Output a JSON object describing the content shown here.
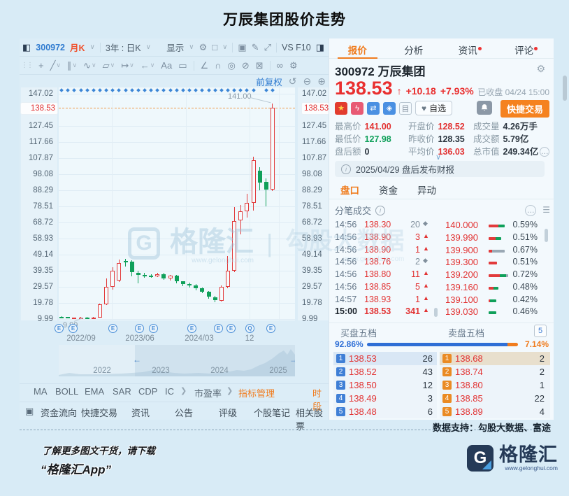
{
  "page_title": "万辰集团股价走势",
  "chart_toolbar": {
    "symbol": "300972",
    "period": "月K",
    "range": "3年 : 日K",
    "display_label": "显示",
    "vs_label": "VS F10",
    "adjust_label": "前复权"
  },
  "drawing_tools": [
    {
      "name": "move-tool-icon",
      "glyph": "+"
    },
    {
      "name": "trendline-tool-icon",
      "glyph": "╱",
      "chev": true
    },
    {
      "name": "channel-tool-icon",
      "glyph": "∥",
      "chev": true
    },
    {
      "name": "wave-tool-icon",
      "glyph": "∿",
      "chev": true
    },
    {
      "name": "pattern-tool-icon",
      "glyph": "▱",
      "chev": true
    },
    {
      "name": "measure-tool-icon",
      "glyph": "↦",
      "chev": true
    },
    {
      "name": "arrow-tool-icon",
      "glyph": "←",
      "chev": true
    },
    {
      "name": "text-tool-icon",
      "glyph": "Aa"
    },
    {
      "name": "comment-tool-icon",
      "glyph": "▭"
    },
    {
      "sep": true
    },
    {
      "name": "angle-tool-icon",
      "glyph": "∠"
    },
    {
      "name": "magnet-tool-icon",
      "glyph": "∩"
    },
    {
      "name": "visibility-tool-icon",
      "glyph": "◎"
    },
    {
      "name": "lock-tool-icon",
      "glyph": "⊘"
    },
    {
      "name": "delete-tool-icon",
      "glyph": "⊠"
    },
    {
      "sep": true
    },
    {
      "name": "link-tool-icon",
      "glyph": "∞"
    },
    {
      "name": "tools-settings-icon",
      "glyph": "⚙"
    }
  ],
  "chart": {
    "y_ticks": [
      "147.02",
      "138.53",
      "127.45",
      "117.66",
      "107.87",
      "98.08",
      "88.29",
      "78.51",
      "68.72",
      "58.93",
      "49.14",
      "39.35",
      "29.57",
      "19.78",
      "9.99"
    ],
    "current_price": "138.53",
    "high_label": "141.00",
    "low_label": "9.99",
    "dot_gap_index": 31,
    "x_labels": [
      {
        "text": "2022/09",
        "x": 88
      },
      {
        "text": "2023/06",
        "x": 172
      },
      {
        "text": "2024/03",
        "x": 257
      },
      {
        "text": "12",
        "x": 329
      }
    ],
    "events": [
      {
        "x": 56,
        "letter": "E"
      },
      {
        "x": 76,
        "letter": "E"
      },
      {
        "x": 133,
        "letter": "E"
      },
      {
        "x": 171,
        "letter": "E"
      },
      {
        "x": 191,
        "letter": "E"
      },
      {
        "x": 246,
        "letter": "E"
      },
      {
        "x": 284,
        "letter": "E"
      },
      {
        "x": 302,
        "letter": "E"
      },
      {
        "x": 329,
        "letter": "Q"
      },
      {
        "x": 359,
        "letter": "E"
      }
    ],
    "navigator": {
      "years": [
        {
          "text": "2022",
          "x": 118
        },
        {
          "text": "2023",
          "x": 202
        },
        {
          "text": "2024",
          "x": 286
        },
        {
          "text": "2025",
          "x": 370
        }
      ],
      "profile": "0,43 15,40 30,42 60,42 90,41 120,39 135,36 150,38 165,40 180,41 200,40 215,41 230,40 245,38 255,36 265,37 275,35 285,30 295,26 305,20 315,12 322,8 327,14 332,6 338,14 338,45 0,45"
    },
    "indicators": [
      "MA",
      "BOLL",
      "EMA",
      "SAR",
      "CDP",
      "IC"
    ],
    "pe_label": "市盈率",
    "manage_label": "指标管理",
    "session_label": "时段"
  },
  "chart_data": {
    "type": "candlestick",
    "title": "万辰集团股价走势",
    "symbol": "300972",
    "period": "monthly",
    "ylim": [
      9.99,
      147.02
    ],
    "high_marker": {
      "month": "2025/03",
      "value": 141.0
    },
    "low_marker": {
      "month": "2022/08",
      "value": 9.99
    },
    "candles": [
      {
        "month": "2022/06",
        "o": 11.5,
        "c": 11.2,
        "l": 11.0,
        "h": 11.7,
        "dir": "down"
      },
      {
        "month": "2022/07",
        "o": 11.2,
        "c": 10.6,
        "l": 10.2,
        "h": 11.4,
        "dir": "down"
      },
      {
        "month": "2022/08",
        "o": 10.4,
        "c": 10.8,
        "l": 9.99,
        "h": 11.0,
        "dir": "up"
      },
      {
        "month": "2022/09",
        "o": 10.5,
        "c": 10.9,
        "l": 10.2,
        "h": 11.1,
        "dir": "up"
      },
      {
        "month": "2022/10",
        "o": 10.9,
        "c": 10.6,
        "l": 10.3,
        "h": 11.1,
        "dir": "down"
      },
      {
        "month": "2022/11",
        "o": 10.6,
        "c": 11.0,
        "l": 10.2,
        "h": 11.2,
        "dir": "up"
      },
      {
        "month": "2022/12",
        "o": 11.0,
        "c": 18.8,
        "l": 10.8,
        "h": 19.3,
        "dir": "up"
      },
      {
        "month": "2023/01",
        "o": 19.0,
        "c": 29.8,
        "l": 18.3,
        "h": 34.5,
        "dir": "up"
      },
      {
        "month": "2023/02",
        "o": 29.5,
        "c": 39.3,
        "l": 28.0,
        "h": 41.5,
        "dir": "up"
      },
      {
        "month": "2023/03",
        "o": 33.5,
        "c": 44.0,
        "l": 32.5,
        "h": 46.0,
        "dir": "up"
      },
      {
        "month": "2023/04",
        "o": 45.5,
        "c": 44.3,
        "l": 42.0,
        "h": 46.5,
        "dir": "down"
      },
      {
        "month": "2023/05",
        "o": 44.8,
        "c": 38.5,
        "l": 36.0,
        "h": 45.8,
        "dir": "down"
      },
      {
        "month": "2023/06",
        "o": 38.3,
        "c": 36.9,
        "l": 31.8,
        "h": 39.2,
        "dir": "down"
      },
      {
        "month": "2023/07",
        "o": 37.0,
        "c": 36.3,
        "l": 35.2,
        "h": 38.0,
        "dir": "down"
      },
      {
        "month": "2023/08",
        "o": 36.5,
        "c": 36.0,
        "l": 35.0,
        "h": 37.2,
        "dir": "down"
      },
      {
        "month": "2023/09",
        "o": 36.0,
        "c": 37.3,
        "l": 35.3,
        "h": 38.2,
        "dir": "up"
      },
      {
        "month": "2023/10",
        "o": 37.3,
        "c": 34.6,
        "l": 33.8,
        "h": 38.0,
        "dir": "down"
      },
      {
        "month": "2023/11",
        "o": 34.6,
        "c": 36.2,
        "l": 33.6,
        "h": 36.8,
        "dir": "up"
      },
      {
        "month": "2023/12",
        "o": 36.2,
        "c": 32.8,
        "l": 31.8,
        "h": 36.8,
        "dir": "down"
      },
      {
        "month": "2024/01",
        "o": 32.8,
        "c": 31.4,
        "l": 30.0,
        "h": 33.2,
        "dir": "down"
      },
      {
        "month": "2024/02",
        "o": 31.4,
        "c": 30.6,
        "l": 29.3,
        "h": 32.0,
        "dir": "down"
      },
      {
        "month": "2024/03",
        "o": 30.6,
        "c": 28.7,
        "l": 27.4,
        "h": 31.2,
        "dir": "down"
      },
      {
        "month": "2024/04",
        "o": 28.7,
        "c": 26.7,
        "l": 25.8,
        "h": 29.3,
        "dir": "down"
      },
      {
        "month": "2024/05",
        "o": 26.7,
        "c": 23.4,
        "l": 22.3,
        "h": 27.2,
        "dir": "down"
      },
      {
        "month": "2024/06",
        "o": 23.4,
        "c": 21.7,
        "l": 20.3,
        "h": 24.0,
        "dir": "down"
      },
      {
        "month": "2024/07",
        "o": 21.2,
        "c": 29.4,
        "l": 20.6,
        "h": 30.3,
        "dir": "up"
      },
      {
        "month": "2024/08",
        "o": 29.4,
        "c": 39.4,
        "l": 28.6,
        "h": 48.2,
        "dir": "up"
      },
      {
        "month": "2024/09",
        "o": 39.4,
        "c": 69.8,
        "l": 38.4,
        "h": 78.2,
        "dir": "up"
      },
      {
        "month": "2024/10",
        "o": 69.8,
        "c": 75.4,
        "l": 61.5,
        "h": 79.5,
        "dir": "up"
      },
      {
        "month": "2024/11",
        "o": 75.4,
        "c": 80.6,
        "l": 71.5,
        "h": 86.0,
        "dir": "up"
      },
      {
        "month": "2024/12",
        "o": 80.6,
        "c": 106.8,
        "l": 75.8,
        "h": 108.6,
        "dir": "up"
      },
      {
        "month": "2025/01",
        "o": 100.2,
        "c": 93.0,
        "l": 88.5,
        "h": 102.5,
        "dir": "down"
      },
      {
        "month": "2025/02",
        "o": 93.5,
        "c": 88.6,
        "l": 78.6,
        "h": 95.5,
        "dir": "down"
      },
      {
        "month": "2025/03",
        "o": 88.7,
        "c": 138.53,
        "l": 88.0,
        "h": 141.0,
        "dir": "up"
      }
    ]
  },
  "bottom_nav": {
    "items": [
      {
        "label": "资金流向",
        "x": 30
      },
      {
        "label": "快捷交易",
        "x": 88
      },
      {
        "label": "资讯",
        "x": 160
      },
      {
        "label": "公告",
        "x": 222
      },
      {
        "label": "评级",
        "x": 285
      },
      {
        "label": "个股笔记",
        "x": 335
      },
      {
        "label": "相关股票",
        "x": 395
      }
    ]
  },
  "quote": {
    "tabs": [
      {
        "label": "报价",
        "active": true,
        "dot": false
      },
      {
        "label": "分析",
        "active": false,
        "dot": false
      },
      {
        "label": "资讯",
        "active": false,
        "dot": true
      },
      {
        "label": "评论",
        "active": false,
        "dot": true
      }
    ],
    "code": "300972",
    "name": "万辰集团",
    "price": "138.53",
    "arrow": "↑",
    "change": "+10.18",
    "change_pct": "+7.93%",
    "status": "已收盘 04/24 15:00",
    "badges": [
      {
        "name": "market-cn-badge",
        "glyph": "★",
        "bg": "#e23c2e",
        "fg": "#ffd24a"
      },
      {
        "name": "margin-badge",
        "glyph": "ϟ",
        "bg": "#e85a74",
        "fg": "#ffffff"
      },
      {
        "name": "swap-badge",
        "glyph": "⇄",
        "bg": "#4a90e2",
        "fg": "#ffffff"
      },
      {
        "name": "tag-badge",
        "glyph": "◈",
        "bg": "#4a90e2",
        "fg": "#ffffff"
      },
      {
        "name": "report-badge",
        "glyph": "目",
        "bg": "transparent",
        "fg": "#8a97a4",
        "outline": true
      }
    ],
    "watch_label": "自选",
    "quick_trade_label": "快捷交易",
    "stats": [
      {
        "label": "最高价",
        "value": "141.00",
        "color": "red",
        "col": 0,
        "row": 0
      },
      {
        "label": "最低价",
        "value": "127.98",
        "color": "green",
        "col": 0,
        "row": 1
      },
      {
        "label": "盘后额",
        "value": "0",
        "color": "dark",
        "col": 0,
        "row": 2
      },
      {
        "label": "开盘价",
        "value": "128.52",
        "color": "red",
        "col": 1,
        "row": 0
      },
      {
        "label": "昨收价",
        "value": "128.35",
        "color": "dark",
        "col": 1,
        "row": 1
      },
      {
        "label": "平均价",
        "value": "136.03",
        "color": "red",
        "col": 1,
        "row": 2
      },
      {
        "label": "成交量",
        "value": "4.26万手",
        "color": "dark",
        "col": 2,
        "row": 0
      },
      {
        "label": "成交额",
        "value": "5.79亿",
        "color": "dark",
        "col": 2,
        "row": 1
      },
      {
        "label": "总市值",
        "value": "249.34亿",
        "color": "dark",
        "col": 2,
        "row": 2,
        "more": true
      }
    ],
    "notice": "2025/04/29  盘后发布财报",
    "subtabs": [
      {
        "label": "盘口",
        "active": true
      },
      {
        "label": "资金",
        "active": false
      },
      {
        "label": "异动",
        "active": false
      }
    ],
    "tick_title": "分笔成交"
  },
  "ticks": [
    {
      "time": "14:56",
      "price": "138.30",
      "vol": "20",
      "dir": "flat"
    },
    {
      "time": "14:56",
      "price": "138.90",
      "vol": "3",
      "dir": "up"
    },
    {
      "time": "14:56",
      "price": "138.90",
      "vol": "1",
      "dir": "up"
    },
    {
      "time": "14:56",
      "price": "138.76",
      "vol": "2",
      "dir": "flat"
    },
    {
      "time": "14:56",
      "price": "138.80",
      "vol": "11",
      "dir": "up"
    },
    {
      "time": "14:56",
      "price": "138.85",
      "vol": "5",
      "dir": "up"
    },
    {
      "time": "14:57",
      "price": "138.93",
      "vol": "1",
      "dir": "up"
    },
    {
      "time": "15:00",
      "price": "138.53",
      "vol": "341",
      "dir": "up",
      "bold": true
    }
  ],
  "price_levels": [
    {
      "price": "140.000",
      "pct": "0.59%",
      "bar": [
        [
          "red",
          14
        ],
        [
          "green",
          9
        ]
      ]
    },
    {
      "price": "139.990",
      "pct": "0.51%",
      "bar": [
        [
          "red",
          10
        ],
        [
          "green",
          8
        ]
      ]
    },
    {
      "price": "139.900",
      "pct": "0.67%",
      "bar": [
        [
          "red",
          5
        ],
        [
          "grey",
          18
        ]
      ]
    },
    {
      "price": "139.300",
      "pct": "0.51%",
      "bar": [
        [
          "red",
          12
        ]
      ]
    },
    {
      "price": "139.200",
      "pct": "0.72%",
      "bar": [
        [
          "red",
          16
        ],
        [
          "green",
          9
        ],
        [
          "grey",
          3
        ]
      ]
    },
    {
      "price": "139.160",
      "pct": "0.48%",
      "bar": [
        [
          "red",
          7
        ],
        [
          "green",
          7
        ]
      ]
    },
    {
      "price": "139.100",
      "pct": "0.42%",
      "bar": [
        [
          "red",
          2
        ],
        [
          "green",
          9
        ]
      ]
    },
    {
      "price": "139.030",
      "pct": "0.46%",
      "bar": [
        [
          "green",
          11
        ]
      ]
    }
  ],
  "depth": {
    "buy_title": "买盘五档",
    "sell_title": "卖盘五档",
    "level_btn": "5",
    "buy_ratio": "92.86%",
    "sell_ratio": "7.14%",
    "buy_ratio_val": 92.86,
    "buy": [
      {
        "level": "1",
        "price": "138.53",
        "qty": "26"
      },
      {
        "level": "2",
        "price": "138.52",
        "qty": "43"
      },
      {
        "level": "3",
        "price": "138.50",
        "qty": "12"
      },
      {
        "level": "4",
        "price": "138.49",
        "qty": "3"
      },
      {
        "level": "5",
        "price": "138.48",
        "qty": "6"
      }
    ],
    "sell": [
      {
        "level": "1",
        "price": "138.68",
        "qty": "2"
      },
      {
        "level": "2",
        "price": "138.74",
        "qty": "2"
      },
      {
        "level": "3",
        "price": "138.80",
        "qty": "1"
      },
      {
        "level": "4",
        "price": "138.85",
        "qty": "22"
      },
      {
        "level": "5",
        "price": "138.89",
        "qty": "4"
      }
    ]
  },
  "support_line": "数据支持：勾股大数据、富途",
  "footer": {
    "line1": "了解更多图文干货，请下载",
    "line2": "“格隆汇App”",
    "logo_letter": "G",
    "logo_text": "格隆汇",
    "logo_url": "www.gelonghui.com"
  },
  "watermark": {
    "logo_letter": "G",
    "brand": "格隆汇",
    "brand_url": "www.gelonghui.com",
    "partner": "勾股大数据",
    "partner_url": "www.gogudata.com"
  },
  "colors": {
    "up_red": "#e23b3c",
    "down_green": "#0fa05a",
    "accent_orange": "#f07c1e",
    "link_blue": "#2f7bd0",
    "buy_blue": "#3f7fd6",
    "sell_orange": "#ea8a23"
  }
}
